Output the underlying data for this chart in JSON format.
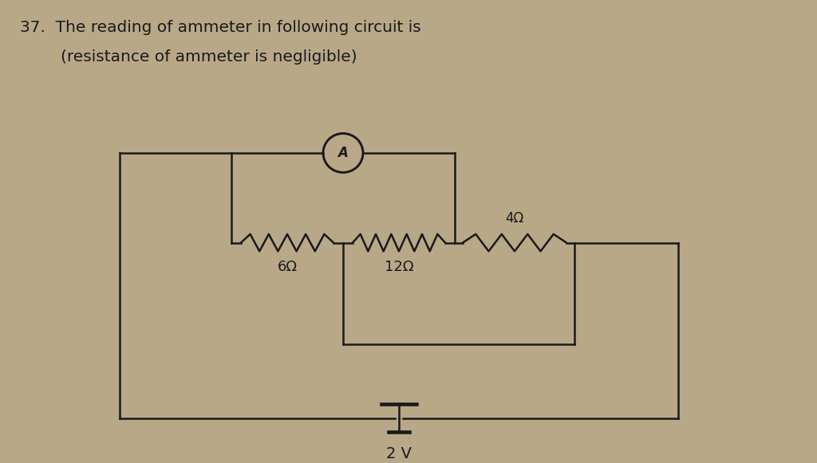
{
  "bg_color": "#b8a888",
  "title_line1": "37.  The reading of ammeter in following circuit is",
  "title_line2": "        (resistance of ammeter is negligible)",
  "title_fontsize": 14.5,
  "title_color": "#1a1a1a",
  "circuit_color": "#1a1a1a",
  "label_6": "6Ω",
  "label_12": "12Ω",
  "label_4": "4Ω",
  "label_2v": "2 V",
  "label_A": "A",
  "lw": 1.8
}
